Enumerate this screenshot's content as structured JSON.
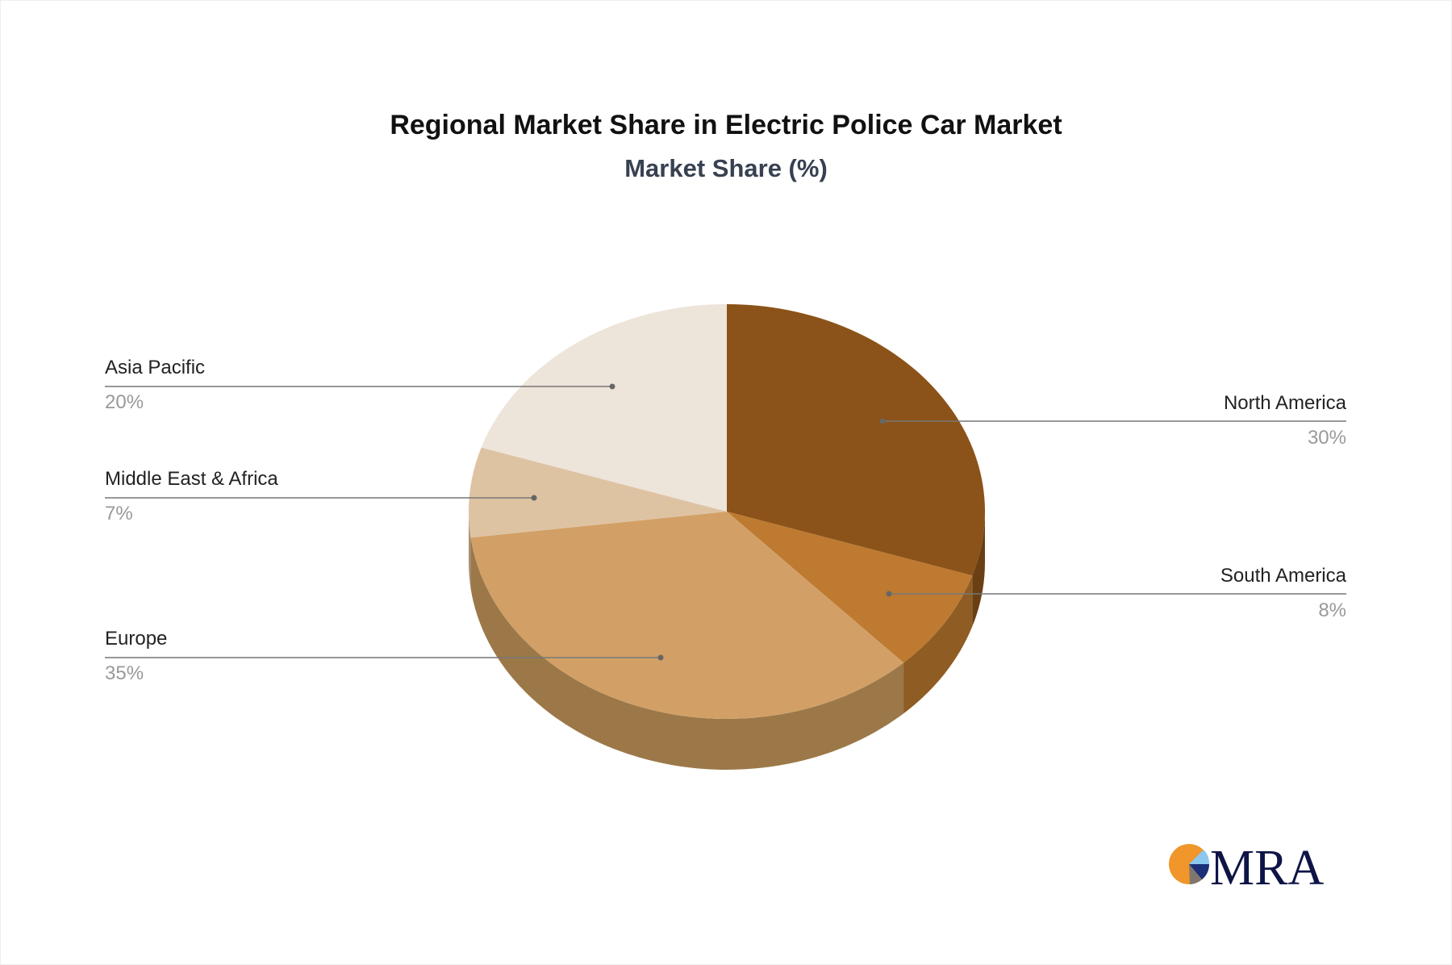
{
  "chart_data": {
    "type": "pie",
    "title": "Regional Market Share in Electric Police Car Market",
    "subtitle": "Market Share (%)",
    "style": "3d",
    "slices": [
      {
        "label": "North America",
        "value": 30,
        "display": "30%",
        "color": "#8B5319",
        "side": "#6A3F13"
      },
      {
        "label": "South America",
        "value": 8,
        "display": "8%",
        "color": "#BE7A30",
        "side": "#8F5C24"
      },
      {
        "label": "Europe",
        "value": 35,
        "display": "35%",
        "color": "#D2A066",
        "side": "#9C7849"
      },
      {
        "label": "Middle East & Africa",
        "value": 7,
        "display": "7%",
        "color": "#DEC3A3",
        "side": "#A89276"
      },
      {
        "label": "Asia Pacific",
        "value": 20,
        "display": "20%",
        "color": "#EDE4DA",
        "side": "#B5ADA3"
      }
    ]
  },
  "logo": {
    "text": "MRA"
  }
}
